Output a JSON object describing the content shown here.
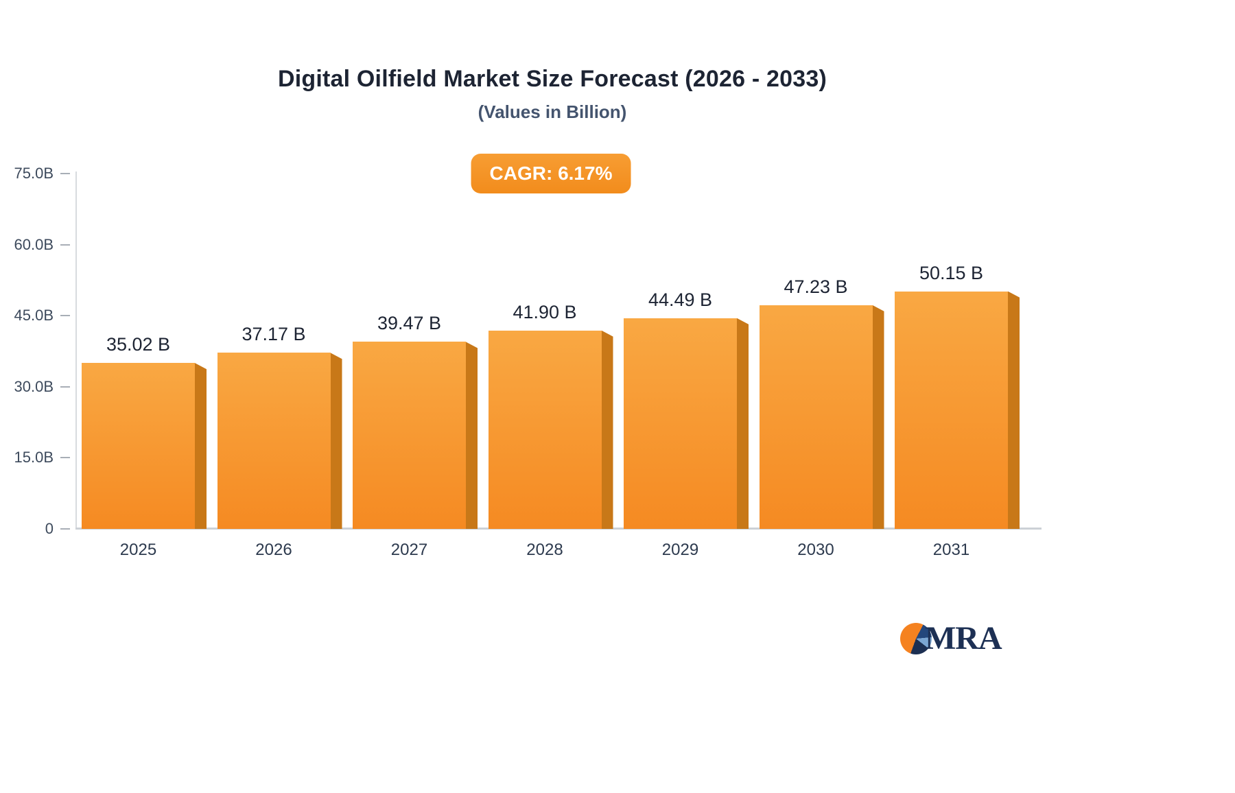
{
  "title": "Digital Oilfield Market Size Forecast (2026 - 2033)",
  "subtitle": "(Values in Billion)",
  "cagr_badge": "CAGR: 6.17%",
  "logo_text": "MRA",
  "colors": {
    "bar_face_top": "#f9a843",
    "bar_face_bottom": "#f58a22",
    "bar_side": "#c87818",
    "badge_bg": "#f6921e",
    "title_text": "#1d2433",
    "subtitle_text": "#44546e",
    "axis_text": "#3d4a5c",
    "logo_navy": "#1d3054",
    "logo_orange": "#f58220"
  },
  "chart_data": {
    "type": "bar",
    "title": "Digital Oilfield Market Size Forecast (2026 - 2033)",
    "subtitle": "(Values in Billion)",
    "annotations": [
      "CAGR: 6.17%"
    ],
    "categories": [
      "2025",
      "2026",
      "2027",
      "2028",
      "2029",
      "2030",
      "2031"
    ],
    "values": [
      35.02,
      37.17,
      39.47,
      41.9,
      44.49,
      47.23,
      50.15
    ],
    "value_labels": [
      "35.02 B",
      "37.17 B",
      "39.47 B",
      "41.90 B",
      "44.49 B",
      "47.23 B",
      "50.15 B"
    ],
    "xlabel": "",
    "ylabel": "",
    "ylim": [
      0,
      75
    ],
    "yticks": [
      {
        "value": 0,
        "label": "0"
      },
      {
        "value": 15,
        "label": "15.0B"
      },
      {
        "value": 30,
        "label": "30.0B"
      },
      {
        "value": 45,
        "label": "45.0B"
      },
      {
        "value": 60,
        "label": "60.0B"
      },
      {
        "value": 75,
        "label": "75.0B"
      }
    ],
    "grid": false,
    "legend": false
  }
}
